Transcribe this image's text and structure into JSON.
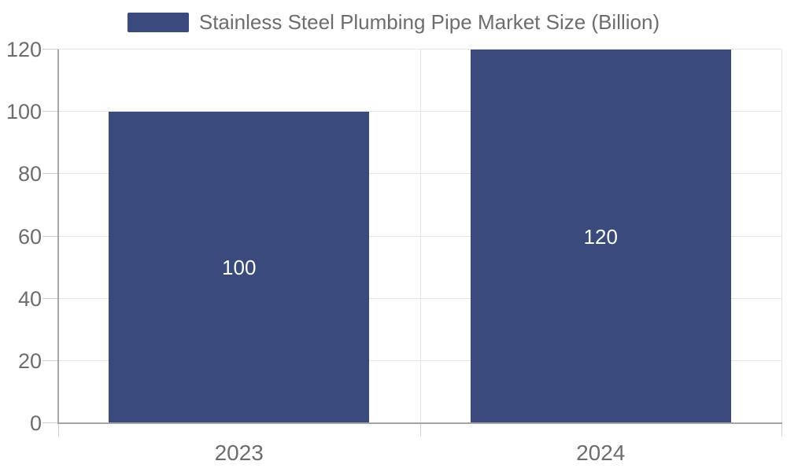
{
  "chart_data": {
    "type": "bar",
    "title": "Stainless Steel Plumbing Pipe Market Size (Billion)",
    "legend_position": "top-center",
    "categories": [
      "2023",
      "2024"
    ],
    "series": [
      {
        "name": "Stainless Steel Plumbing Pipe Market Size (Billion)",
        "values": [
          100,
          120
        ]
      }
    ],
    "values": [
      100,
      120
    ],
    "data_labels": [
      "100",
      "120"
    ],
    "xlabel": "",
    "ylabel": "",
    "ylim": [
      0,
      120
    ],
    "yticks": [
      0,
      20,
      40,
      60,
      80,
      100,
      120
    ],
    "ytick_labels": [
      "0",
      "20",
      "40",
      "60",
      "80",
      "100",
      "120"
    ],
    "grid": true,
    "colors": {
      "bar": "#3A4A7D",
      "axis": "#a6a6a6",
      "grid": "#e6e6e6",
      "tick": "#cfcfcf",
      "plot_border": "#e2e2e2",
      "text": "#6d6d6d",
      "value_label": "#ffffff",
      "background": "#ffffff"
    }
  }
}
